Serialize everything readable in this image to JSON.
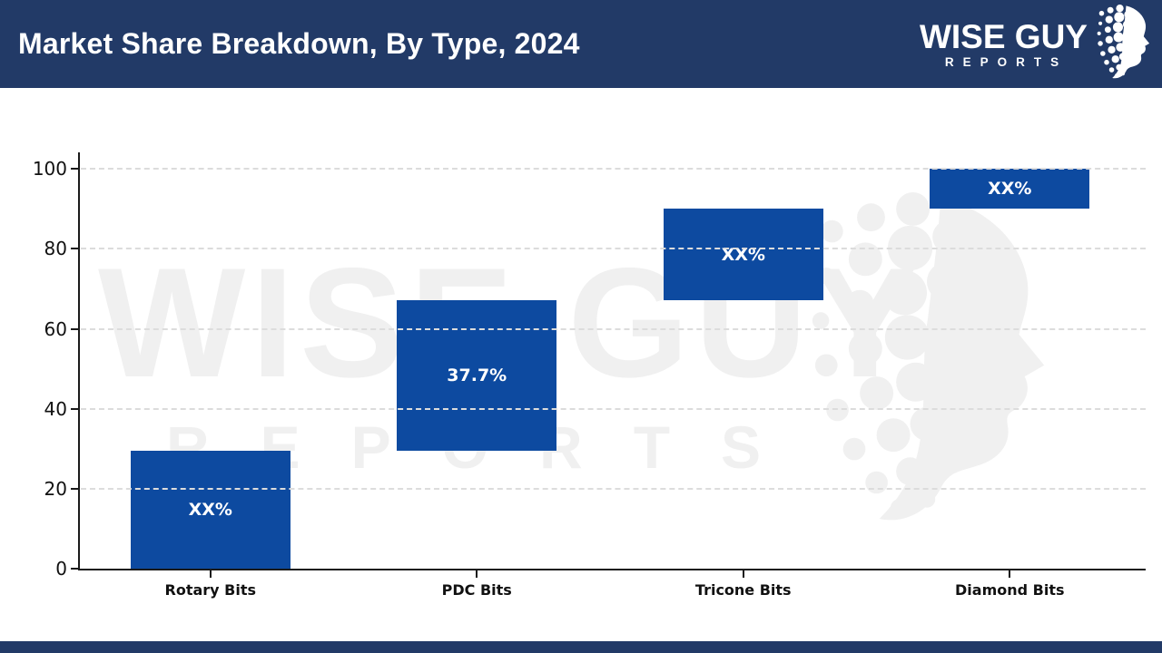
{
  "header": {
    "title": "Market Share Breakdown, By Type, 2024",
    "logo": {
      "line1": "WISE GUY",
      "line2": "REPORTS"
    }
  },
  "watermark": {
    "line1": "WISE GUY",
    "line2": "REPORTS"
  },
  "colors": {
    "header_bg": "#223a67",
    "footer_bg": "#223a67",
    "bar_color": "#0d4aa0",
    "bar_label_color": "#ffffff",
    "axis_color": "#1a1a1a",
    "grid_color": "#dcdcdc",
    "watermark_color": "#f0f0f0",
    "title_color": "#ffffff"
  },
  "chart_data": {
    "type": "bar",
    "subtype": "waterfall",
    "title": "Market Share Breakdown, By Type, 2024",
    "xlabel": "",
    "ylabel": "",
    "categories": [
      "Rotary Bits",
      "PDC Bits",
      "Tricone Bits",
      "Diamond Bits"
    ],
    "segments": [
      {
        "category": "Rotary Bits",
        "start": 0,
        "end": 29.5,
        "label": "XX%"
      },
      {
        "category": "PDC Bits",
        "start": 29.5,
        "end": 67.2,
        "label": "37.7%"
      },
      {
        "category": "Tricone Bits",
        "start": 67.2,
        "end": 90,
        "label": "XX%"
      },
      {
        "category": "Diamond Bits",
        "start": 90,
        "end": 100,
        "label": "XX%"
      }
    ],
    "yticks": [
      0,
      20,
      40,
      60,
      80,
      100
    ],
    "ylim": [
      0,
      104
    ],
    "grid": "horizontal-dashed",
    "legend": "none"
  }
}
